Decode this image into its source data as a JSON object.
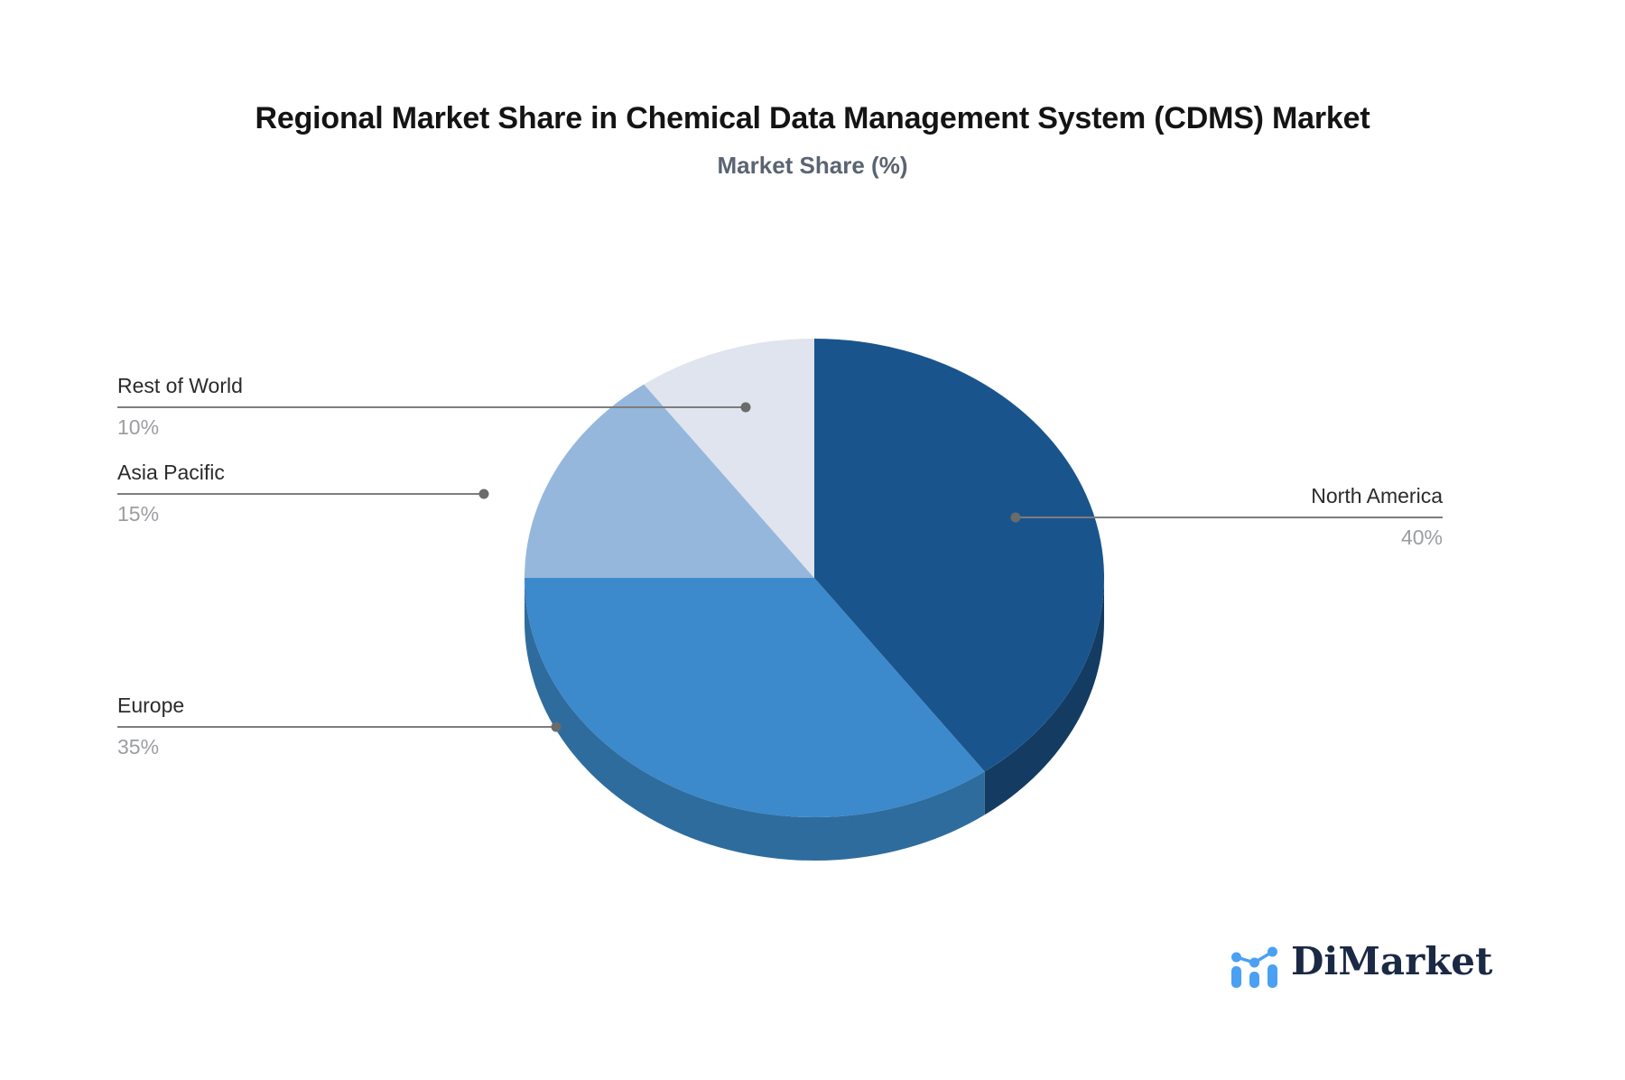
{
  "title": "Regional Market Share in Chemical Data Management System (CDMS) Market",
  "subtitle": "Market Share (%)",
  "brand": {
    "name": "DiMarket",
    "icon": "bar-chart-trend-icon",
    "icon_color": "#4aa0f2",
    "text_color": "#1b2944"
  },
  "colors": {
    "background": "#ffffff",
    "leader_line": "#7d7d7d",
    "leader_dot": "#6b6b6b",
    "label_text": "#2b2b2b",
    "value_text": "#9b9da1",
    "subtitle_text": "#5a6472"
  },
  "chart_data": {
    "type": "pie",
    "style": "3d-pie",
    "title": "Regional Market Share in Chemical Data Management System (CDMS) Market",
    "subtitle": "Market Share (%)",
    "unit": "%",
    "start_angle_deg": 0,
    "direction": "clockwise",
    "legend_position": "callout-labels",
    "slices": [
      {
        "label": "North America",
        "value": 40,
        "display_value": "40%",
        "color": "#19558c",
        "side_color": "#143c62"
      },
      {
        "label": "Europe",
        "value": 35,
        "display_value": "35%",
        "color": "#3c89cb",
        "side_color": "#2f6c9e"
      },
      {
        "label": "Asia Pacific",
        "value": 15,
        "display_value": "15%",
        "color": "#95b7dc",
        "side_color": "#7a9cc2"
      },
      {
        "label": "Rest of World",
        "value": 10,
        "display_value": "10%",
        "color": "#dfe4ee",
        "side_color": "#bec9da"
      }
    ]
  }
}
